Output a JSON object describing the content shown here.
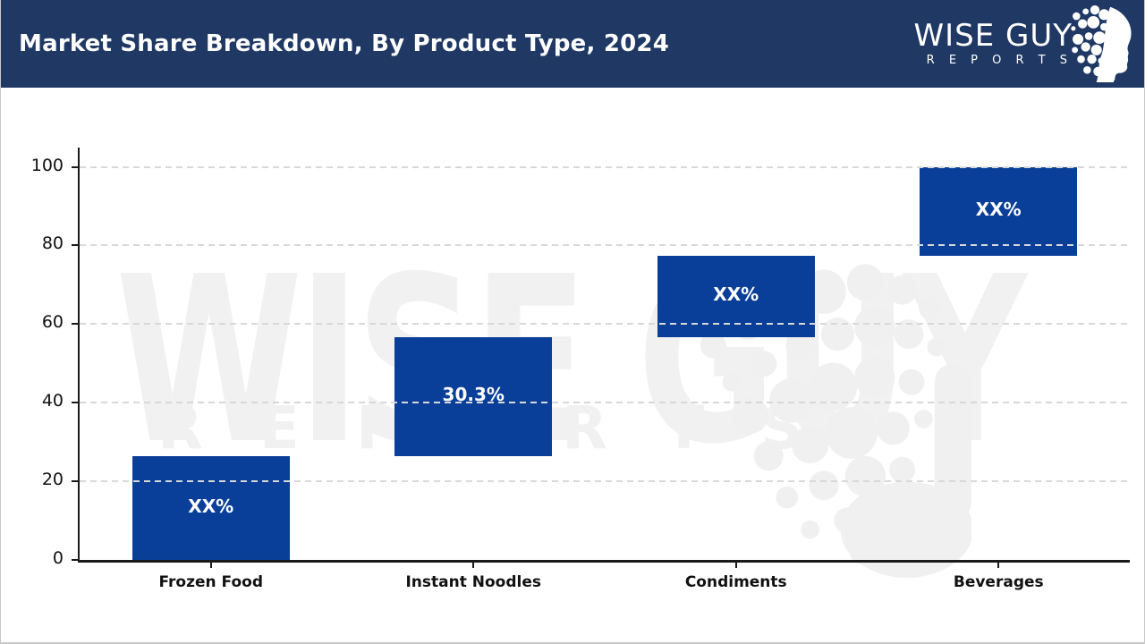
{
  "header": {
    "title": "Market Share Breakdown, By Product Type, 2024",
    "background_color": "#1f3864",
    "logo": {
      "line1": "WISE GUY",
      "line2": "R E P O R T S",
      "icon": "dotted-head-profile"
    }
  },
  "watermark": {
    "line1": "WISE GUY",
    "line2": "R E P O R T S",
    "icon": "dotted-head-profile"
  },
  "chart_data": {
    "type": "bar",
    "subtype": "waterfall",
    "title": "Market Share Breakdown, By Product Type, 2024",
    "categories": [
      "Frozen Food",
      "Instant Noodles",
      "Condiments",
      "Beverages"
    ],
    "segments": [
      {
        "category": "Frozen Food",
        "label": "XX%",
        "start": 0,
        "end": 26.4
      },
      {
        "category": "Instant Noodles",
        "label": "30.3%",
        "start": 26.4,
        "end": 56.7
      },
      {
        "category": "Condiments",
        "label": "XX%",
        "start": 56.7,
        "end": 77.4
      },
      {
        "category": "Beverages",
        "label": "XX%",
        "start": 77.4,
        "end": 100
      }
    ],
    "yticks": [
      0,
      20,
      40,
      60,
      80,
      100
    ],
    "ylim": [
      0,
      105
    ],
    "xlabel": "",
    "ylabel": "",
    "grid": "horizontal-dashed-above-bars",
    "legend": "none",
    "bar_color": "#0a3f99",
    "bar_label_color": "#ffffff",
    "axis_color": "#1a1a1a",
    "gridline_color": "#d8d8d8"
  }
}
